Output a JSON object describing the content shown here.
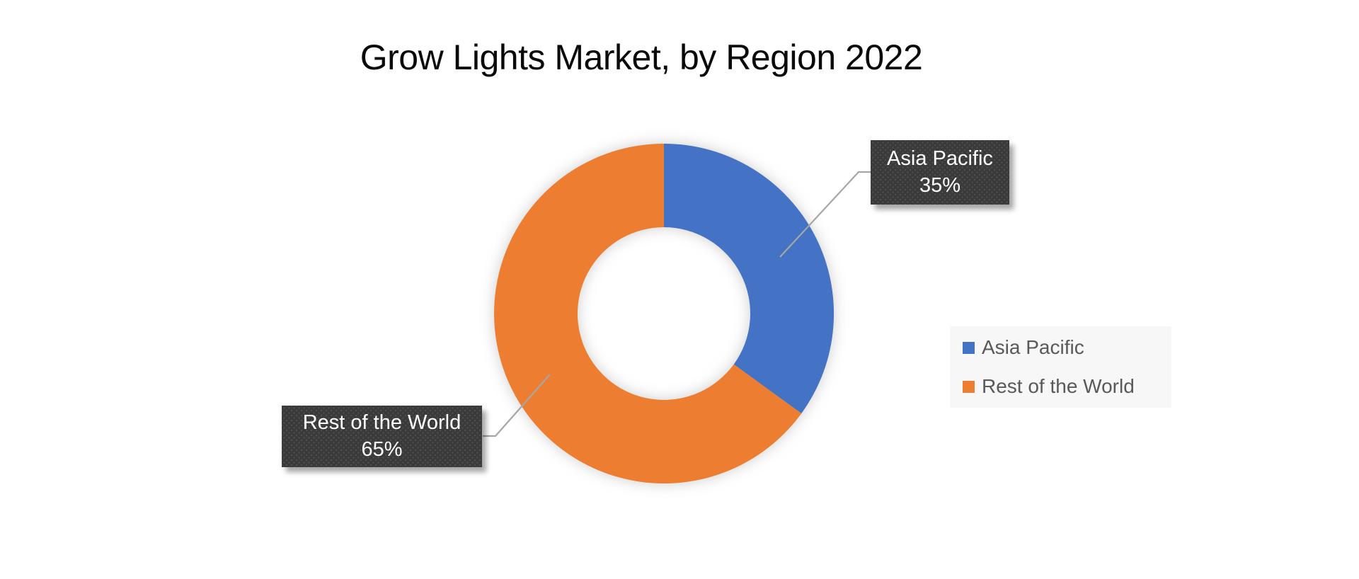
{
  "title": "Grow Lights Market, by Region 2022",
  "chart_data": {
    "type": "pie",
    "subtype": "donut",
    "title": "Grow Lights Market, by Region 2022",
    "categories": [
      "Asia Pacific",
      "Rest of the World"
    ],
    "values": [
      35,
      65
    ],
    "unit": "%",
    "colors": [
      "#4472c4",
      "#ed7d31"
    ],
    "start_angle_deg": 0,
    "direction": "clockwise",
    "inner_radius_ratio": 0.51,
    "legend_position": "right",
    "data_label_style": "callout",
    "background": "#ffffff"
  },
  "callouts": [
    {
      "label": "Asia Pacific",
      "value": "35%"
    },
    {
      "label": "Rest of the World",
      "value": "65%"
    }
  ],
  "legend": {
    "items": [
      {
        "label": "Asia Pacific",
        "color": "#4472c4"
      },
      {
        "label": "Rest of the World",
        "color": "#ed7d31"
      }
    ]
  },
  "style": {
    "callout_background": "#3a3a3a",
    "callout_text_color": "#ffffff",
    "leader_line_color": "#a6a6a6",
    "legend_background": "#f7f7f7",
    "legend_text_color": "#595959",
    "title_color": "#0a0a0a"
  }
}
